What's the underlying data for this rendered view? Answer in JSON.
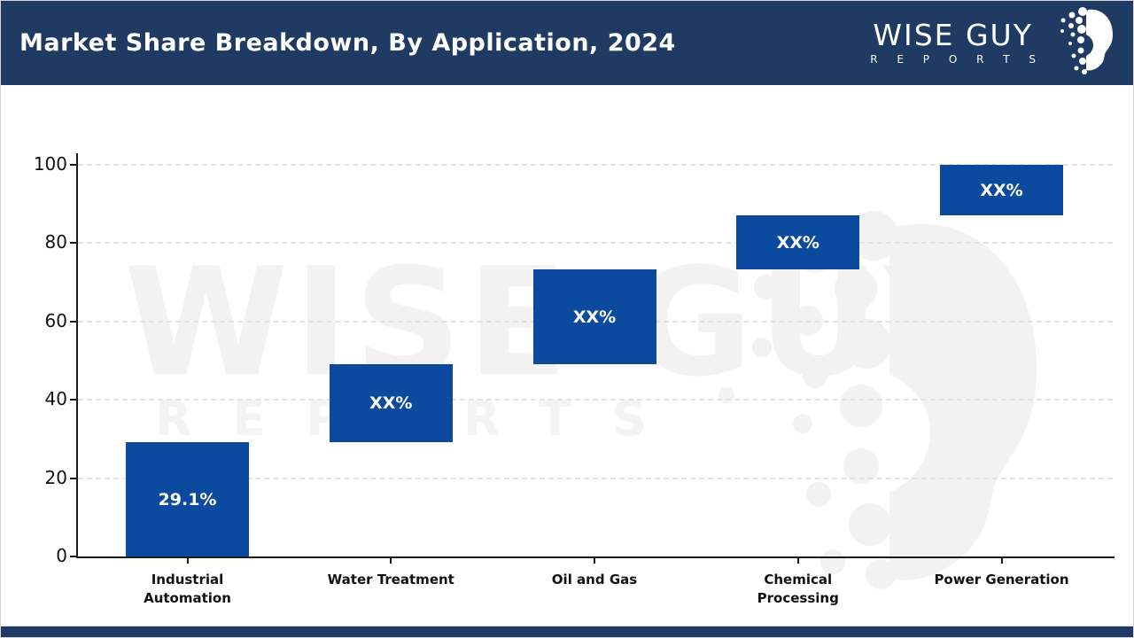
{
  "header": {
    "title": "Market Share Breakdown, By Application, 2024",
    "bg_color": "#1f3a63",
    "logo": {
      "line1": "WISE GUY",
      "line2": "R E P O R T S"
    }
  },
  "watermark": {
    "line1": "WISE GUY",
    "line2": "REPORTS"
  },
  "chart_data": {
    "type": "bar",
    "subtype": "waterfall",
    "title": "Market Share Breakdown, By Application, 2024",
    "xlabel": "",
    "ylabel": "",
    "ylim": [
      0,
      107
    ],
    "yticks": [
      0,
      20,
      40,
      60,
      80,
      100
    ],
    "grid": "dashed-horizontal",
    "bar_color": "#0b4a9e",
    "label_color": "#ffffff",
    "categories": [
      "Industrial Automation",
      "Water Treatment",
      "Oil and Gas",
      "Chemical Processing",
      "Power Generation"
    ],
    "segments": [
      {
        "label": "Industrial Automation",
        "label_lines": [
          "Industrial",
          "Automation"
        ],
        "start": 0,
        "end": 29.1,
        "value_label": "29.1%"
      },
      {
        "label": "Water Treatment",
        "label_lines": [
          "Water Treatment"
        ],
        "start": 29.1,
        "end": 49.0,
        "value_label": "XX%"
      },
      {
        "label": "Oil and Gas",
        "label_lines": [
          "Oil and Gas"
        ],
        "start": 49.0,
        "end": 73.3,
        "value_label": "XX%"
      },
      {
        "label": "Chemical Processing",
        "label_lines": [
          "Chemical",
          "Processing"
        ],
        "start": 73.3,
        "end": 87.0,
        "value_label": "XX%"
      },
      {
        "label": "Power Generation",
        "label_lines": [
          "Power Generation"
        ],
        "start": 87.0,
        "end": 100.0,
        "value_label": "XX%"
      }
    ]
  }
}
